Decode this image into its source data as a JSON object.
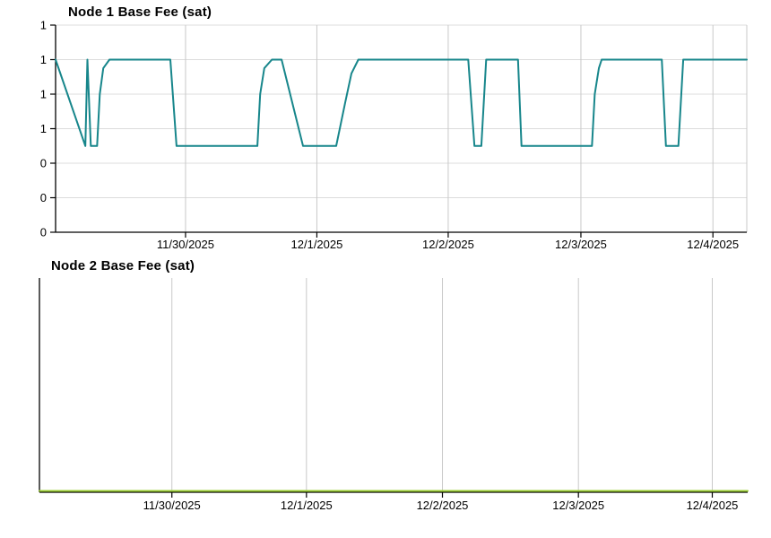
{
  "colors": {
    "background": "#ffffff",
    "axis": "#000000",
    "text": "#000000",
    "vertical_gridline": "#c9c9c9",
    "horizontal_gridline": "#dcdcdc",
    "node1_line": "#17868b",
    "node2_line": "#9acd32"
  },
  "chart_data": [
    {
      "type": "line",
      "title": "Node 1 Base Fee (sat)",
      "xlabel": "",
      "ylabel": "",
      "y_axis": {
        "min": 0,
        "max": 1.2,
        "tick_labels": [
          "1",
          "1",
          "1",
          "1",
          "0",
          "0",
          "0"
        ]
      },
      "x_tick_labels": [
        "11/30/2025",
        "12/1/2025",
        "12/2/2025",
        "12/3/2025",
        "12/4/2025"
      ],
      "x_tick_positions": [
        0.188,
        0.378,
        0.568,
        0.76,
        0.951
      ],
      "x_range_note": "approx 11/29/2025 00:00 to 12/4/2025 06:00",
      "grid": {
        "horizontal": true,
        "vertical": true
      },
      "legend": "none",
      "series": [
        {
          "name": "Node 1 Base Fee",
          "unit": "sat",
          "color": "#17868b",
          "points": [
            [
              0.0,
              1.0
            ],
            [
              0.043,
              0.5
            ],
            [
              0.046,
              1.0
            ],
            [
              0.051,
              0.5
            ],
            [
              0.06,
              0.5
            ],
            [
              0.064,
              0.8
            ],
            [
              0.069,
              0.95
            ],
            [
              0.078,
              1.0
            ],
            [
              0.166,
              1.0
            ],
            [
              0.175,
              0.5
            ],
            [
              0.292,
              0.5
            ],
            [
              0.296,
              0.8
            ],
            [
              0.302,
              0.95
            ],
            [
              0.313,
              1.0
            ],
            [
              0.327,
              1.0
            ],
            [
              0.358,
              0.5
            ],
            [
              0.406,
              0.5
            ],
            [
              0.419,
              0.75
            ],
            [
              0.428,
              0.92
            ],
            [
              0.438,
              1.0
            ],
            [
              0.597,
              1.0
            ],
            [
              0.606,
              0.5
            ],
            [
              0.616,
              0.5
            ],
            [
              0.623,
              1.0
            ],
            [
              0.669,
              1.0
            ],
            [
              0.674,
              0.5
            ],
            [
              0.776,
              0.5
            ],
            [
              0.78,
              0.8
            ],
            [
              0.786,
              0.95
            ],
            [
              0.79,
              1.0
            ],
            [
              0.877,
              1.0
            ],
            [
              0.883,
              0.5
            ],
            [
              0.901,
              0.5
            ],
            [
              0.908,
              1.0
            ],
            [
              1.0,
              1.0
            ]
          ]
        }
      ]
    },
    {
      "type": "line",
      "title": "Node 2 Base Fee (sat)",
      "xlabel": "",
      "ylabel": "",
      "y_axis": {
        "min": 0,
        "max": 1.2,
        "tick_labels": []
      },
      "x_tick_labels": [
        "11/30/2025",
        "12/1/2025",
        "12/2/2025",
        "12/3/2025",
        "12/4/2025"
      ],
      "x_tick_positions": [
        0.187,
        0.377,
        0.569,
        0.761,
        0.95
      ],
      "x_range_note": "approx 11/29/2025 00:00 to 12/4/2025 06:00",
      "grid": {
        "horizontal": false,
        "vertical": true
      },
      "legend": "none",
      "series": [
        {
          "name": "Node 2 Base Fee",
          "unit": "sat",
          "color": "#9acd32",
          "points": [
            [
              0.0,
              0.0
            ],
            [
              1.0,
              0.0
            ]
          ]
        }
      ]
    }
  ]
}
